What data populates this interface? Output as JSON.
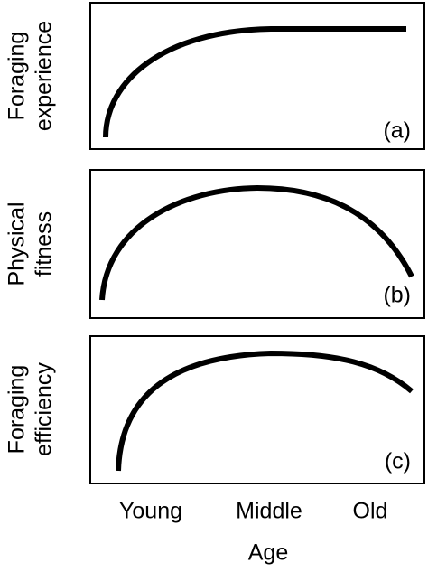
{
  "panels": [
    {
      "y_label": [
        "Foraging",
        "experience"
      ],
      "tag": "(a)"
    },
    {
      "y_label": [
        "Physical",
        "fitness"
      ],
      "tag": "(b)"
    },
    {
      "y_label": [
        "Foraging",
        "efficiency"
      ],
      "tag": "(c)"
    }
  ],
  "x_labels": [
    "Young",
    "Middle",
    "Old"
  ],
  "x_title": "Age"
}
